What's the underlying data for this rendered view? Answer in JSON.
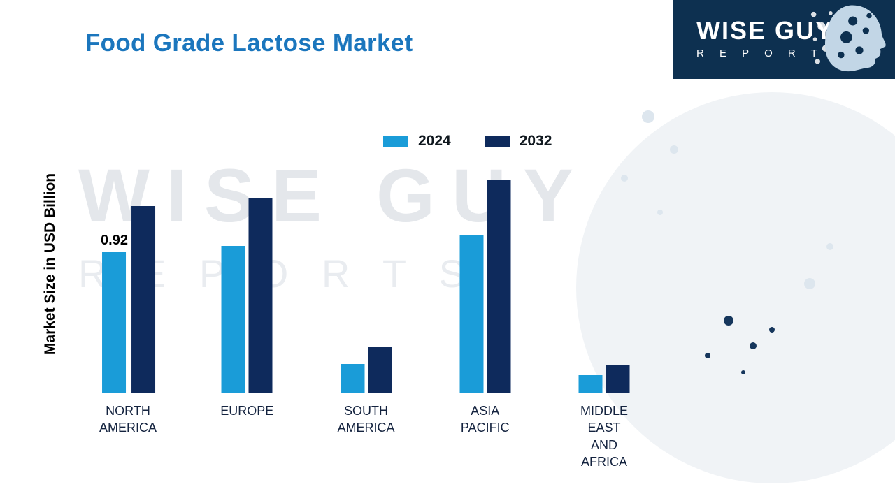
{
  "title": "Food Grade Lactose Market",
  "logo": {
    "line1": "WISE GUY",
    "line2": "R E P O R T S"
  },
  "watermark": {
    "line1": "WISE GUY",
    "line2": "R E P O R T S"
  },
  "colors": {
    "title": "#1b76bd",
    "series_2024": "#1a9cd8",
    "series_2032": "#0e2a5c",
    "logo_background": "#0d3050"
  },
  "chart_data": {
    "type": "bar",
    "title": "Food Grade Lactose Market",
    "xlabel": "",
    "ylabel": "Market Size in USD Billion",
    "ylim": [
      0,
      1.5
    ],
    "grid": false,
    "legend_position": "top",
    "categories": [
      "NORTH\nAMERICA",
      "EUROPE",
      "SOUTH\nAMERICA",
      "ASIA\nPACIFIC",
      "MIDDLE\nEAST\nAND\nAFRICA"
    ],
    "series": [
      {
        "name": "2024",
        "color": "#1a9cd8",
        "values": [
          0.92,
          0.96,
          0.19,
          1.03,
          0.12
        ],
        "labels": [
          "0.92",
          null,
          null,
          null,
          null
        ]
      },
      {
        "name": "2032",
        "color": "#0e2a5c",
        "values": [
          1.22,
          1.27,
          0.3,
          1.39,
          0.18
        ],
        "labels": [
          null,
          null,
          null,
          null,
          null
        ]
      }
    ]
  }
}
